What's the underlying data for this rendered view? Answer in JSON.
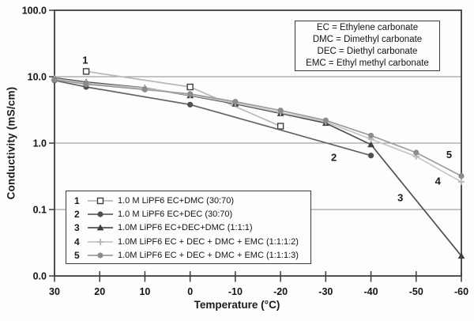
{
  "abbreviation_box": {
    "lines": [
      "EC = Ethylene carbonate",
      "DMC = Dimethyl carbonate",
      "DEC = Diethyl carbonate",
      "EMC = Ethyl methyl carbonate"
    ]
  },
  "chart_data": {
    "type": "line",
    "title": "",
    "xlabel": "Temperature (°C)",
    "ylabel": "Conductivity (mS/cm)",
    "x_axis": {
      "unit": "°C",
      "ticks": [
        30,
        20,
        10,
        0,
        -10,
        -20,
        -30,
        -40,
        -50,
        -60
      ],
      "min": 30,
      "max": -60,
      "direction": "decreasing-to-right"
    },
    "y_axis": {
      "unit": "mS/cm",
      "scale": "log10",
      "min": 0.01,
      "max": 100,
      "ticks": [
        100,
        10,
        1,
        0.1,
        0.01
      ],
      "tick_labels": [
        "100.0",
        "10.0",
        "1.0",
        "0.1",
        "0.0"
      ],
      "gridlines_at": [
        10,
        1,
        0.1
      ]
    },
    "legend_position": "bottom-left-inside",
    "series": [
      {
        "id": "1",
        "name": "1.0 M LiPF6 EC+DMC (30:70)",
        "marker": "open-square",
        "line_color": "#b8b8b8",
        "marker_color": "#3d3d3d",
        "points": [
          [
            23,
            12.0
          ],
          [
            0,
            7.0
          ],
          [
            -20,
            1.8
          ]
        ]
      },
      {
        "id": "2",
        "name": "1.0 M LiPF6 EC+DEC (30:70)",
        "marker": "filled-circle",
        "line_color": "#636363",
        "marker_color": "#4f4f4f",
        "points": [
          [
            30,
            8.8
          ],
          [
            23,
            7.0
          ],
          [
            0,
            3.8
          ],
          [
            -40,
            0.65
          ]
        ]
      },
      {
        "id": "3",
        "name": "1.0M LiPF6 EC+DEC+DMC (1:1:1)",
        "marker": "filled-triangle",
        "line_color": "#4f4f4f",
        "marker_color": "#3f3f3f",
        "points": [
          [
            30,
            9.6
          ],
          [
            23,
            8.3
          ],
          [
            10,
            6.8
          ],
          [
            0,
            5.2
          ],
          [
            -10,
            3.9
          ],
          [
            -20,
            2.8
          ],
          [
            -30,
            2.0
          ],
          [
            -40,
            0.95
          ],
          [
            -60,
            0.02
          ]
        ]
      },
      {
        "id": "4",
        "name": "1.0M LiPF6 EC + DEC + DMC + EMC (1:1:1:2)",
        "marker": "plus",
        "line_color": "#c6c6c6",
        "marker_color": "#b9b9b9",
        "points": [
          [
            30,
            9.3
          ],
          [
            23,
            8.0
          ],
          [
            10,
            6.7
          ],
          [
            0,
            5.3
          ],
          [
            -10,
            4.0
          ],
          [
            -20,
            2.9
          ],
          [
            -30,
            2.1
          ],
          [
            -40,
            1.15
          ],
          [
            -50,
            0.63
          ],
          [
            -60,
            0.26
          ]
        ]
      },
      {
        "id": "5",
        "name": "1.0M LiPF6 EC + DEC + DMC + EMC (1:1:1:3)",
        "marker": "filled-circle",
        "line_color": "#9c9c9c",
        "marker_color": "#8c8c8c",
        "points": [
          [
            30,
            9.0
          ],
          [
            23,
            7.7
          ],
          [
            10,
            6.4
          ],
          [
            0,
            5.5
          ],
          [
            -10,
            4.2
          ],
          [
            -20,
            3.1
          ],
          [
            -30,
            2.2
          ],
          [
            -40,
            1.3
          ],
          [
            -50,
            0.72
          ],
          [
            -60,
            0.32
          ]
        ]
      }
    ],
    "curve_labels": [
      {
        "text": "1",
        "T": 23.2,
        "C": 17.5
      },
      {
        "text": "2",
        "T": -31.8,
        "C": 0.6
      },
      {
        "text": "3",
        "T": -46.5,
        "C": 0.148
      },
      {
        "text": "4",
        "T": -54.8,
        "C": 0.265
      },
      {
        "text": "5",
        "T": -57.3,
        "C": 0.66
      }
    ],
    "colors": {
      "axis": "#3c3c3c",
      "gridline": "#8c8c8c",
      "text": "#141414"
    }
  }
}
